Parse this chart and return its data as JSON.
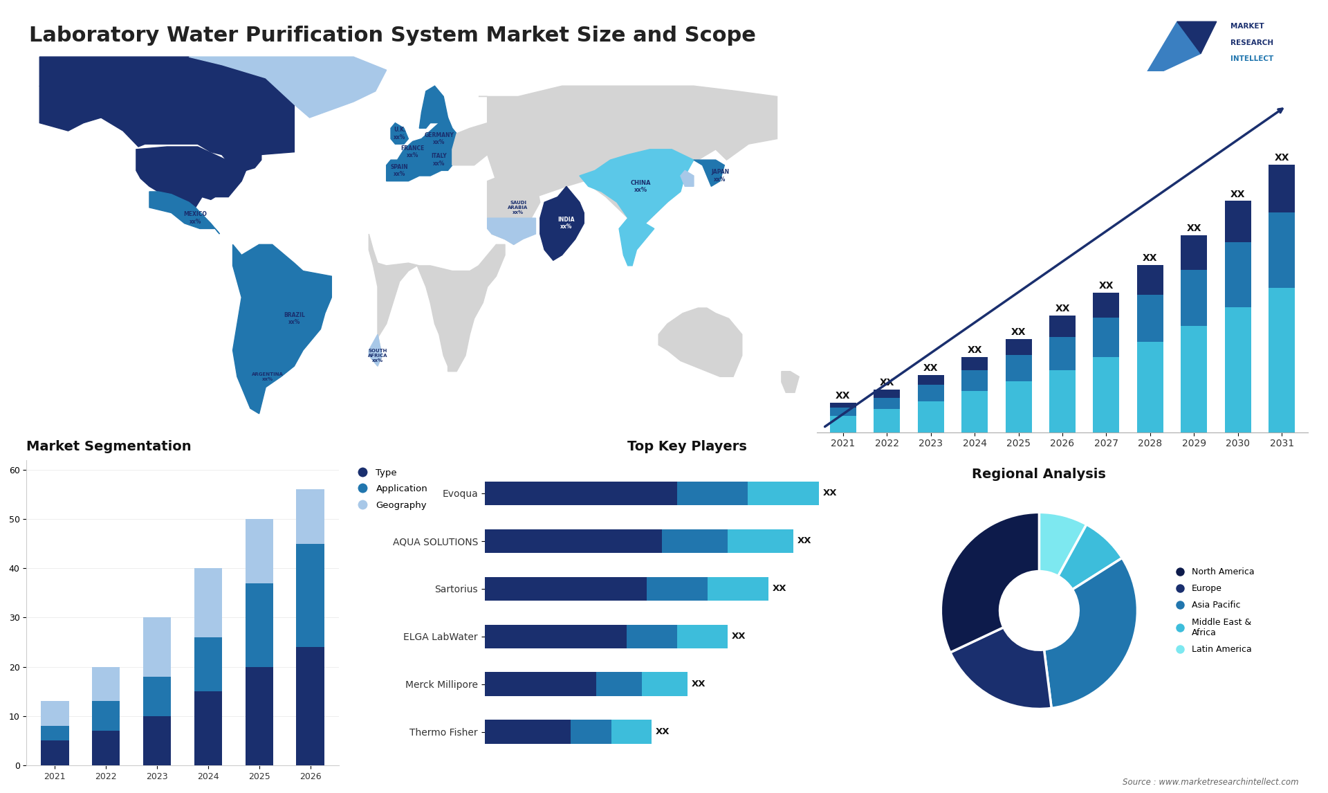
{
  "title": "Laboratory Water Purification System Market Size and Scope",
  "title_fontsize": 22,
  "title_color": "#222222",
  "background_color": "#ffffff",
  "bar_chart_years": [
    "2021",
    "2022",
    "2023",
    "2024",
    "2025",
    "2026",
    "2027",
    "2028",
    "2029",
    "2030",
    "2031"
  ],
  "bar_chart_seg1": [
    1.0,
    1.4,
    1.9,
    2.5,
    3.1,
    3.8,
    4.6,
    5.5,
    6.5,
    7.6,
    8.8
  ],
  "bar_chart_seg2": [
    0.5,
    0.7,
    1.0,
    1.3,
    1.6,
    2.0,
    2.4,
    2.9,
    3.4,
    4.0,
    4.6
  ],
  "bar_chart_seg3": [
    0.3,
    0.5,
    0.6,
    0.8,
    1.0,
    1.3,
    1.5,
    1.8,
    2.1,
    2.5,
    2.9
  ],
  "bar_color_bottom": "#3dbddb",
  "bar_color_mid": "#2176ae",
  "bar_color_top": "#1a2f6e",
  "bar_label_color": "#111111",
  "seg_years": [
    "2021",
    "2022",
    "2023",
    "2024",
    "2025",
    "2026"
  ],
  "seg_type": [
    5,
    7,
    10,
    15,
    20,
    24
  ],
  "seg_application": [
    3,
    6,
    8,
    11,
    17,
    21
  ],
  "seg_geography": [
    5,
    7,
    12,
    14,
    13,
    11
  ],
  "seg_color_type": "#1a2f6e",
  "seg_color_app": "#2176ae",
  "seg_color_geo": "#a8c8e8",
  "seg_title": "Market Segmentation",
  "seg_title_color": "#111111",
  "seg_legend_dot_type": "#1a2f6e",
  "seg_legend_dot_app": "#2176ae",
  "seg_legend_dot_geo": "#a8c8e8",
  "players": [
    "Evoqua",
    "AQUA SOLUTIONS",
    "Sartorius",
    "ELGA LabWater",
    "Merck Millipore",
    "Thermo Fisher"
  ],
  "player_bar_dark": [
    0.38,
    0.35,
    0.32,
    0.28,
    0.22,
    0.17
  ],
  "player_bar_mid": [
    0.14,
    0.13,
    0.12,
    0.1,
    0.09,
    0.08
  ],
  "player_bar_light": [
    0.14,
    0.13,
    0.12,
    0.1,
    0.09,
    0.08
  ],
  "player_color_dark": "#1a2f6e",
  "player_color_mid": "#2176ae",
  "player_color_light": "#3dbddb",
  "players_title": "Top Key Players",
  "pie_sizes": [
    8,
    8,
    32,
    20,
    32
  ],
  "pie_colors": [
    "#7de8f0",
    "#3dbddb",
    "#2176ae",
    "#1a2f6e",
    "#0d1b4b"
  ],
  "pie_labels": [
    "Latin America",
    "Middle East &\nAfrica",
    "Asia Pacific",
    "Europe",
    "North America"
  ],
  "pie_title": "Regional Analysis",
  "source_text": "Source : www.marketresearchintellect.com"
}
